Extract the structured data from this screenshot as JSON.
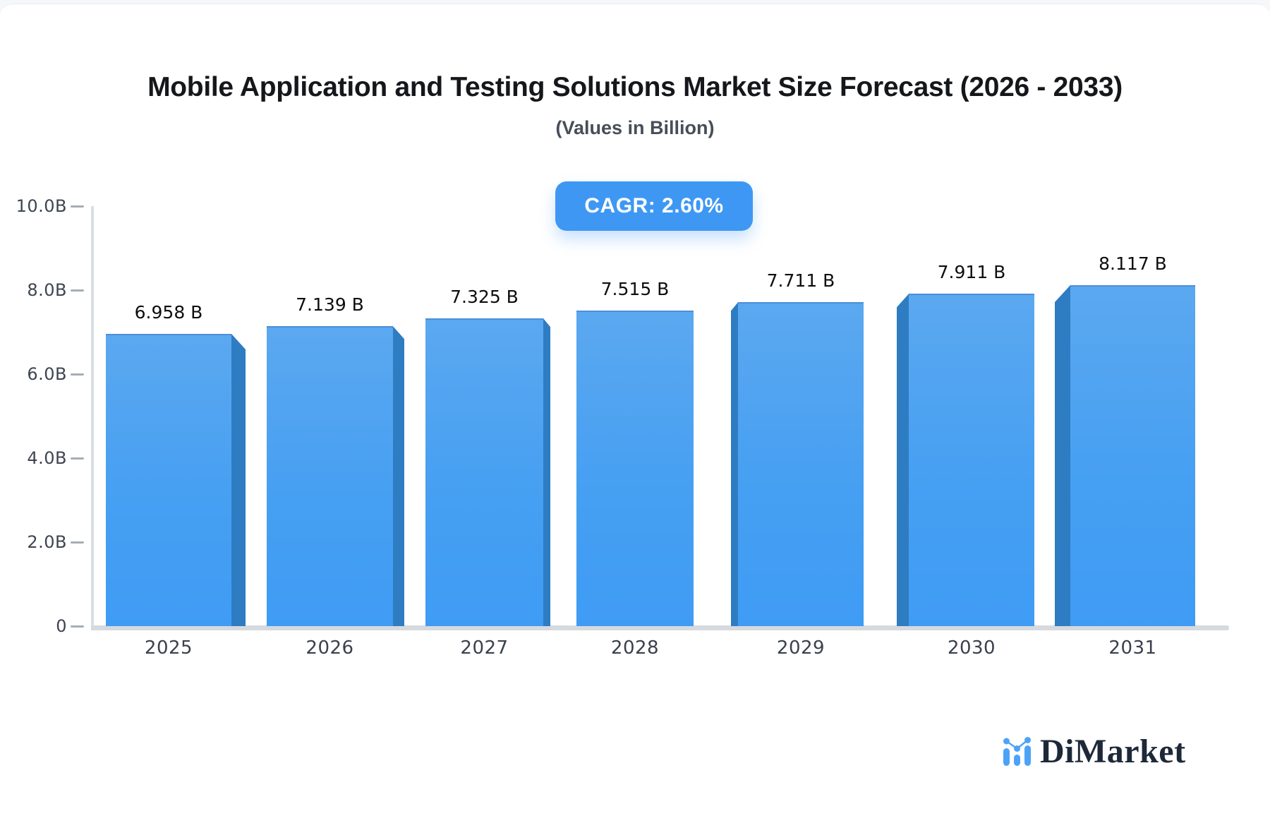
{
  "chart_data": {
    "type": "bar",
    "title": "Mobile Application and Testing Solutions Market Size Forecast (2026 - 2033)",
    "subtitle": "(Values in Billion)",
    "cagr_label": "CAGR: 2.60%",
    "categories": [
      "2025",
      "2026",
      "2027",
      "2028",
      "2029",
      "2030",
      "2031"
    ],
    "values": [
      6.958,
      7.139,
      7.325,
      7.515,
      7.711,
      7.911,
      8.117
    ],
    "value_labels": [
      "6.958 B",
      "7.139 B",
      "7.325 B",
      "7.515 B",
      "7.711 B",
      "7.911 B",
      "8.117 B"
    ],
    "unit": "Billion",
    "xlabel": "",
    "ylabel": "",
    "ylim": [
      0,
      10
    ],
    "y_ticks": [
      {
        "value": 0,
        "label": "0"
      },
      {
        "value": 2,
        "label": "2.0B"
      },
      {
        "value": 4,
        "label": "4.0B"
      },
      {
        "value": 6,
        "label": "6.0B"
      },
      {
        "value": 8,
        "label": "8.0B"
      },
      {
        "value": 10,
        "label": "10.0B"
      }
    ],
    "grid": false,
    "legend": false,
    "bar_style": "3d-perspective-center",
    "colors": {
      "bar_face_top": "#5BA8F0",
      "bar_face_bottom": "#3F9CF4",
      "bar_side": "#2E7CC2",
      "bar_top_edge": "#4B8FD8",
      "badge_bg": "#3E98F3",
      "badge_text": "#FFFFFF",
      "axis_line": "#DADDE2",
      "baseline": "#D6D9DE",
      "tick_dash": "#A6ADB6",
      "tick_text": "#3E4550",
      "year_text": "#3A414C",
      "value_text": "#0D0E10",
      "title_text": "#15171B",
      "subtitle_text": "#474E58",
      "page_bg": "#F6F7F9",
      "card_bg": "#FFFFFF"
    }
  },
  "logo": {
    "name": "DiMarket",
    "icon": "bar-chart-logo-icon",
    "icon_color": "#4BA3F7",
    "text_color": "#1D2939"
  }
}
